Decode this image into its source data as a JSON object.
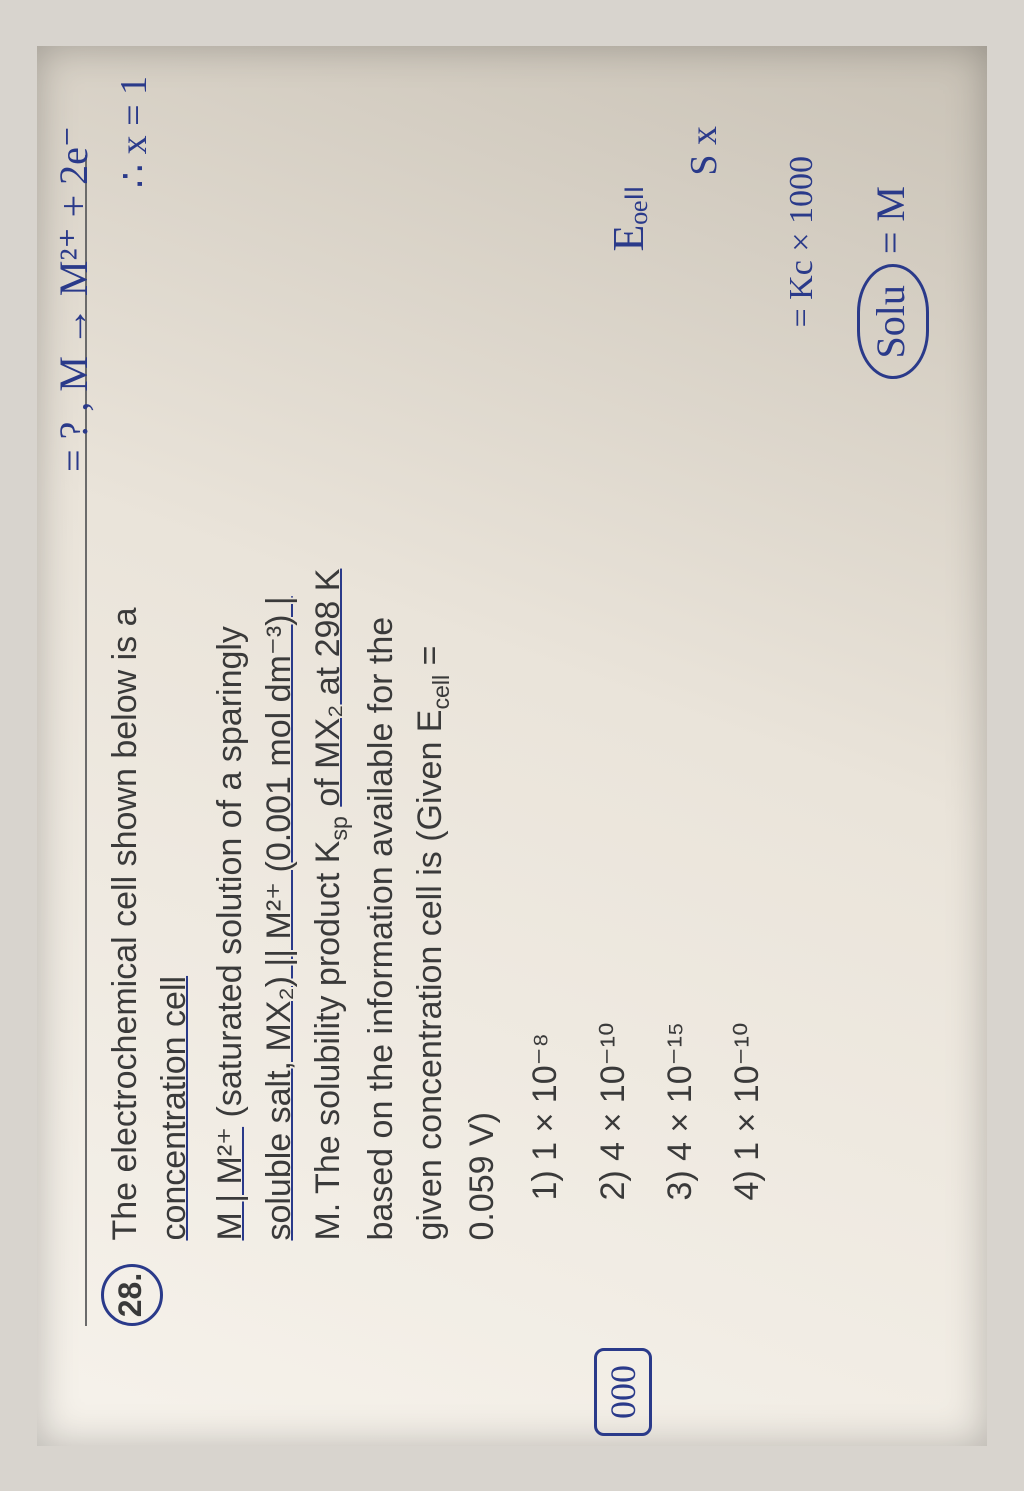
{
  "handwriting": {
    "top": "= ? , M → M²⁺ + 2e⁻",
    "right_margin": "∴ x = 1",
    "mid_e": "Eₒₑₗₗ",
    "sx": "S x",
    "kc": "= Kc × 1000",
    "solu_top": "Solu",
    "solu_side": "= M",
    "left_box": "000"
  },
  "question": {
    "number": "28.",
    "line1_a": "The electrochemical cell shown below is a ",
    "line1_b": "concentration cell",
    "cell_a": "M | M²⁺",
    "cell_b": " (saturated solution of a sparingly",
    "cell_c": "soluble salt, MX₂) || M²⁺ (0.001 mol dm⁻³) |",
    "cell_d": "M. The solubility product K",
    "cell_d_sub": "sp",
    "cell_d2": " of MX₂ at 298 K",
    "line_e": "based on the information available for the",
    "line_f_a": "given concentration cell is (Given E",
    "line_f_sub": "cell",
    "line_f_b": " =",
    "line_g": "0.059 V)"
  },
  "options": {
    "o1": "1)  1 × 10⁻⁸",
    "o2": "2)  4 × 10⁻¹⁰",
    "o3": "3)  4 × 10⁻¹⁵",
    "o4": "4)  1 × 10⁻¹⁰"
  }
}
